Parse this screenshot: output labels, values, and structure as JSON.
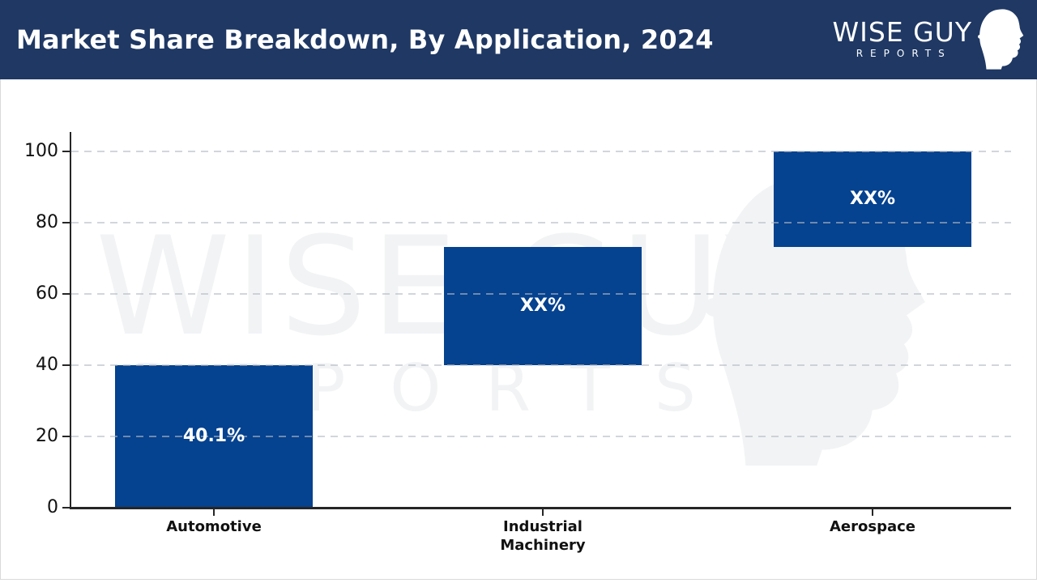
{
  "header": {
    "title": "Market Share Breakdown, By Application, 2024",
    "bg_color": "#1f3864",
    "logo_line1": "WISE GUY",
    "logo_line2": "REPORTS"
  },
  "watermark": {
    "line1": "WISE GUY",
    "line2": "REPORTS"
  },
  "chart_data": {
    "type": "bar",
    "subtype": "waterfall-floating-segments",
    "title": "Market Share Breakdown, By Application, 2024",
    "categories": [
      "Automotive",
      "Industrial Machinery",
      "Aerospace"
    ],
    "tick_labels": [
      "Automotive",
      "Industrial\nMachinery",
      "Aerospace"
    ],
    "segments": [
      {
        "category": "Automotive",
        "start": 0,
        "end": 40.1,
        "label": "40.1%"
      },
      {
        "category": "Industrial Machinery",
        "start": 40.1,
        "end": 73.2,
        "label": "XX%"
      },
      {
        "category": "Aerospace",
        "start": 73.2,
        "end": 100,
        "label": "XX%"
      }
    ],
    "xlabel": "",
    "ylabel": "",
    "yticks": [
      0,
      20,
      40,
      60,
      80,
      100
    ],
    "ylim": [
      0,
      105.5
    ],
    "grid": "horizontal dashed lines drawn above bars",
    "legend": "none",
    "colors": {
      "bar": "#05428f",
      "bar_label": "#ffffff",
      "axis": "#262626",
      "tick_label": "#111111",
      "grid": "#b4bac4",
      "header_bg": "#1f3864",
      "watermark": "#f2f3f5"
    }
  }
}
